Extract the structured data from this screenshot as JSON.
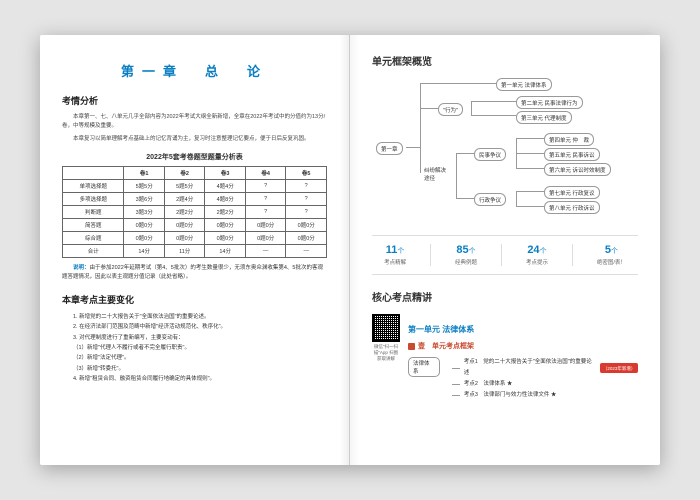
{
  "left": {
    "chapterTitle": "第一章　总　论",
    "sec1": "考情分析",
    "para1": "本章第一、七、八单元几乎全部内容为2022年考试大纲全新新增，全章在2022年考试中的分值约为13分/卷，中等规模及重要。",
    "para2": "本章复习以简单理解考点基础上的记忆背诵为主，复习时注意整理记忆要点，便于日后反复巩固。",
    "tableTitle": "2022年5套考卷题型题量分析表",
    "headers": [
      "",
      "卷1",
      "卷2",
      "卷3",
      "卷4",
      "卷5"
    ],
    "rows": [
      [
        "单项选择题",
        "5题5分",
        "5题5分",
        "4题4分",
        "?",
        "?"
      ],
      [
        "多项选择题",
        "3题6分",
        "2题4分",
        "4题8分",
        "?",
        "?"
      ],
      [
        "判断题",
        "3题3分",
        "2题2分",
        "2题2分",
        "?",
        "?"
      ],
      [
        "简答题",
        "0题0分",
        "0题0分",
        "0题0分",
        "0题0分",
        "0题0分"
      ],
      [
        "综合题",
        "0题0分",
        "0题0分",
        "0题0分",
        "0题0分",
        "0题0分"
      ],
      [
        "合计",
        "14分",
        "11分",
        "14分",
        "—",
        "—"
      ]
    ],
    "noteLabel": "说明：",
    "noteText": "由于参加2022年延期考试（第4、5批次）的考生数量很少，无须东奥众渊收集第4、5批次的客观题答题情况，因此以表主观题分值记录（此处省略）。",
    "sec2": "本章考点主要变化",
    "changes": [
      "1. 新增党的二十大报告关于\"全面依法治国\"的重要论述。",
      "2. 在经济法部门范围及范畴中新增\"经济活动规范化、秩序化\"。",
      "3. 对代理制度进行了重新编写，主要变动有：",
      "（1）新增\"代理人不履行或者不完全履行职责\"。",
      "（2）新增\"法定代理\"。",
      "（3）新增\"转委托\"。",
      "4. 新增\"租赁合同、融资租赁合同履行地确定的具体规则\"。"
    ]
  },
  "right": {
    "title1": "单元框架概览",
    "tree": {
      "root": "第一章",
      "n1": "第一单元 法律体系",
      "n2": "\"行为\"",
      "n2a": "第二单元 民事法律行为",
      "n2b": "第三单元 代理制度",
      "n3": "民事争议",
      "n3a": "第四单元 仲　裁",
      "n3b": "第五单元 民事诉讼",
      "n3c": "第六单元 诉讼时效制度",
      "n4label1": "纠纷解决",
      "n4label2": "途径",
      "n5": "行政争议",
      "n5a": "第七单元 行政复议",
      "n5b": "第八单元 行政诉讼"
    },
    "stats": [
      {
        "n": "11",
        "u": "个",
        "l": "考点精解"
      },
      {
        "n": "85",
        "u": "个",
        "l": "经典例题"
      },
      {
        "n": "24",
        "u": "个",
        "l": "考点提示"
      },
      {
        "n": "5",
        "u": "个",
        "l": "绝密图/表！"
      }
    ],
    "title2": "核心考点精讲",
    "unit1": "第一单元 法律体系",
    "subUnit": "壹　单元考点框架",
    "qrCaption": "微信\"扫一扫描\"App 扫图获取讲解",
    "boxLabel": "法律体系",
    "kp1a": "考点1　党的二十大报告关于\"全面依法治国\"的重要论述",
    "kp1tag": "（2023年新增）",
    "kp2": "考点2　法律体系 ★",
    "kp3": "考点3　法律部门与效力性法律文件 ★"
  }
}
